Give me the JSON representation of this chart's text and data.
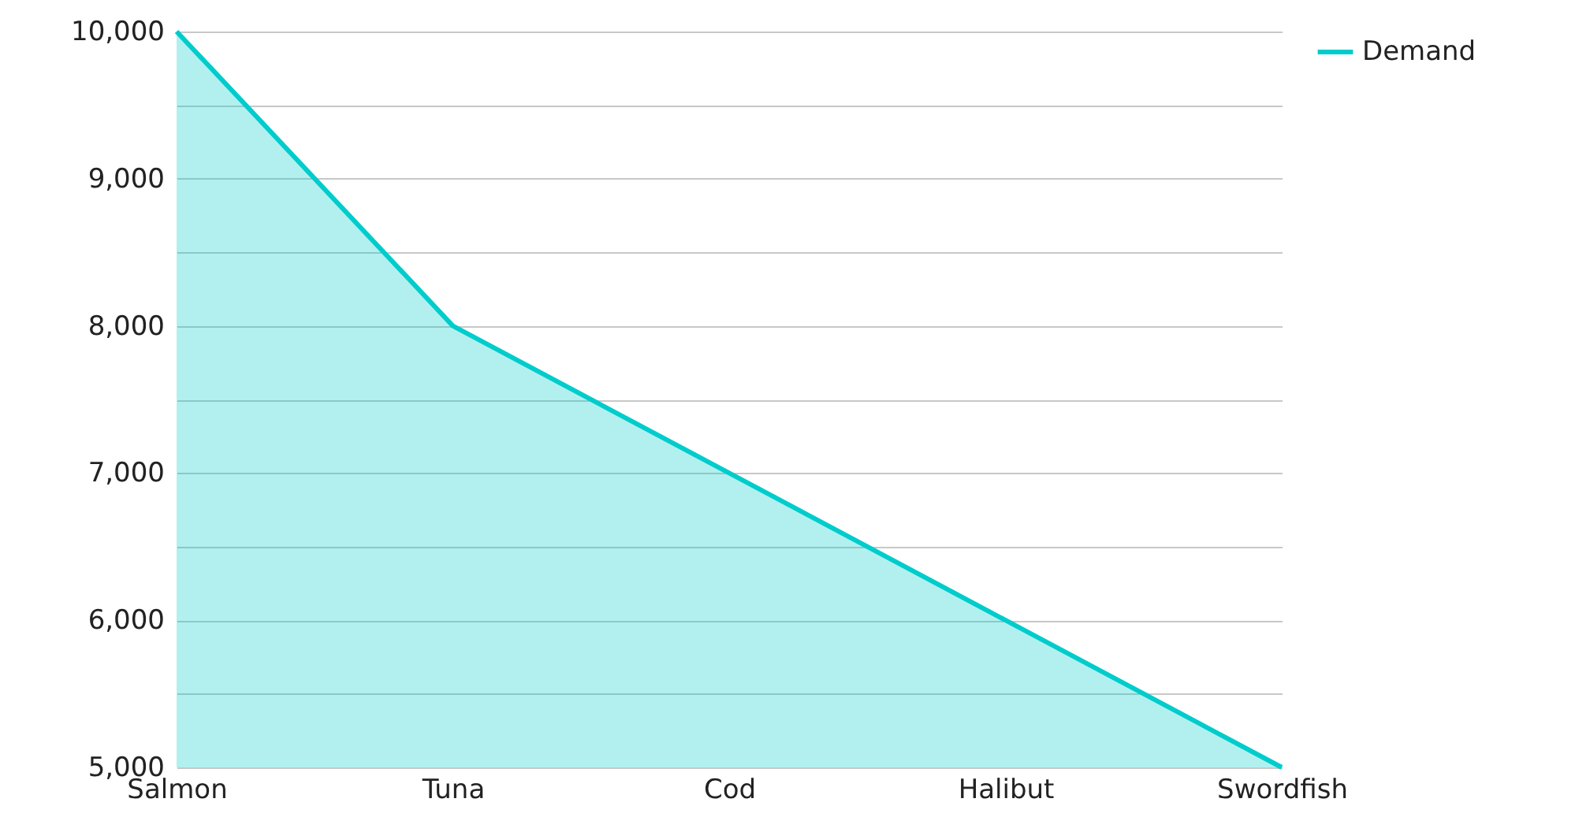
{
  "chart_data": {
    "type": "area",
    "categories": [
      "Salmon",
      "Tuna",
      "Cod",
      "Halibut",
      "Swordfish"
    ],
    "series": [
      {
        "name": "Demand",
        "color": "#00cccc",
        "values": [
          10000,
          8000,
          7000,
          6000,
          5000
        ]
      }
    ],
    "ylim": [
      5000,
      10000
    ],
    "yticks": [
      {
        "value": 5000,
        "label": "5,000"
      },
      {
        "value": 5500,
        "label": null
      },
      {
        "value": 6000,
        "label": "6,000"
      },
      {
        "value": 6500,
        "label": null
      },
      {
        "value": 7000,
        "label": "7,000"
      },
      {
        "value": 7500,
        "label": null
      },
      {
        "value": 8000,
        "label": "8,000"
      },
      {
        "value": 8500,
        "label": null
      },
      {
        "value": 9000,
        "label": "9,000"
      },
      {
        "value": 9500,
        "label": null
      },
      {
        "value": 10000,
        "label": "10,000"
      }
    ],
    "grid": "y",
    "legend": "top right"
  }
}
